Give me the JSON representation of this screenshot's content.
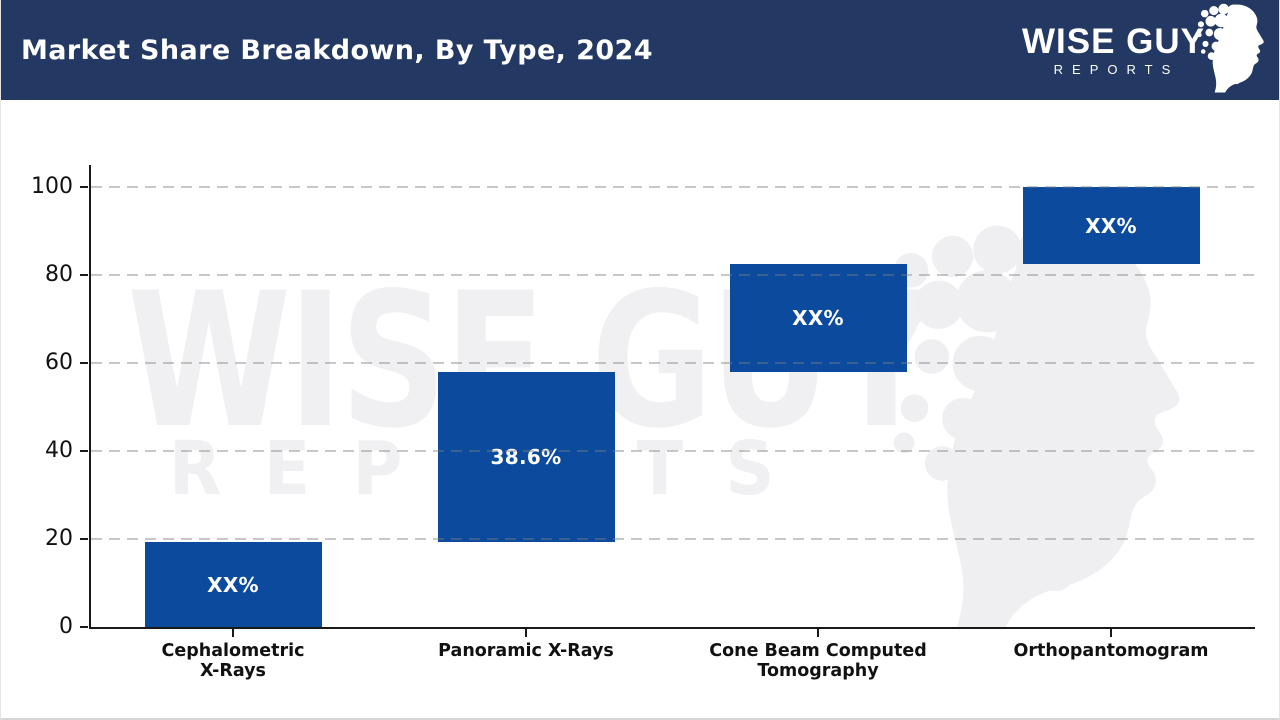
{
  "header": {
    "title": "Market Share Breakdown, By Type, 2024",
    "logo": {
      "wordmark": "WISE GUY",
      "subtext": "REPORTS"
    }
  },
  "watermark": {
    "wordmark": "WISE GUY",
    "subtext": "REPORTS"
  },
  "colors": {
    "header_bg": "#233862",
    "bar": "#0c4a9e",
    "axis": "#1a1a1a",
    "grid": "#c9c9c9",
    "title_text": "#ffffff",
    "watermark": "#f0f0f2"
  },
  "chart_data": {
    "type": "bar",
    "subtype": "waterfall",
    "title": "Market Share Breakdown, By Type, 2024",
    "categories": [
      "Cephalometric\nX-Rays",
      "Panoramic X-Rays",
      "Cone Beam Computed\nTomography",
      "Orthopantomogram"
    ],
    "segments": [
      {
        "category": "Cephalometric X-Rays",
        "start": 0,
        "end": 19.3,
        "label": "XX%"
      },
      {
        "category": "Panoramic X-Rays",
        "start": 19.3,
        "end": 57.9,
        "value": 38.6,
        "label": "38.6%"
      },
      {
        "category": "Cone Beam Computed Tomography",
        "start": 57.9,
        "end": 82.4,
        "label": "XX%"
      },
      {
        "category": "Orthopantomogram",
        "start": 82.4,
        "end": 100,
        "label": "XX%"
      }
    ],
    "ylim": [
      0,
      100
    ],
    "yticks": [
      0,
      20,
      40,
      60,
      80,
      100
    ],
    "grid": "horizontal-dashed",
    "legend": false,
    "bar_color": "#0c4a9e",
    "label_color": "#ffffff"
  }
}
